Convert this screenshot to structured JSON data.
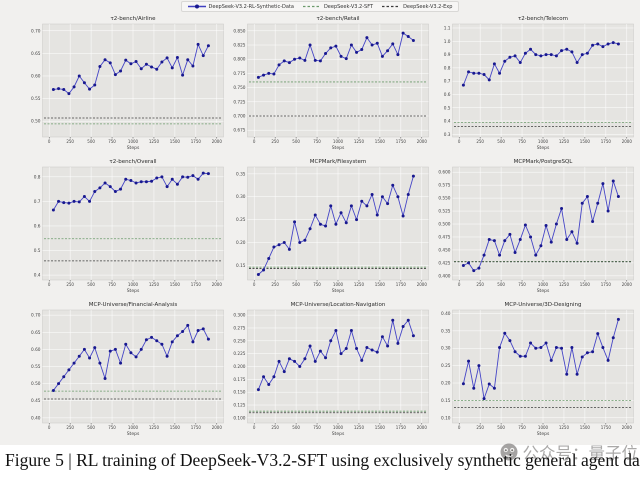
{
  "figure": {
    "caption": "Figure 5 | RL training of DeepSeek-V3.2-SFT using exclusively synthetic general agent data.",
    "watermark_text": "公众号：量子位",
    "xlabel": "Steps",
    "legend": [
      {
        "id": "rl-synthetic-data",
        "label": "DeepSeek-V3.2-RL-Synthetic-Data",
        "style": "line-dot",
        "color": "#4040c0"
      },
      {
        "id": "v32-sft",
        "label": "DeepSeek-V3.2-SFT",
        "style": "dashed",
        "color": "#6b9a6b"
      },
      {
        "id": "v32-exp",
        "label": "DeepSeek-V3.2-Exp",
        "style": "dashed",
        "color": "#3c3c3c"
      }
    ],
    "colors": {
      "series_line": "#4545c6",
      "series_marker": "#18188f",
      "sft_dashed": "#6b9a6b",
      "exp_dashed": "#3c3c3c",
      "axes_bg": "#e5e4e1",
      "fig_bg": "#f1f0ee",
      "grid_line": "#ffffff",
      "spine": "#c9c8c6",
      "tick_text": "#444444",
      "title_text": "#2a2a2a"
    }
  },
  "chart_data": [
    {
      "type": "line",
      "id": "tau2-bench-airline",
      "title": "τ2-bench/Airline",
      "xlabel": "Steps",
      "xticks": [
        0,
        250,
        500,
        750,
        1000,
        1250,
        1500,
        1750,
        2000
      ],
      "xlim": [
        -80,
        2080
      ],
      "x_start": 50,
      "x_end": 1900,
      "ylim": [
        0.465,
        0.715
      ],
      "yticks": [
        "0.50",
        "0.55",
        "0.60",
        "0.65",
        "0.70"
      ],
      "values": [
        0.57,
        0.572,
        0.57,
        0.561,
        0.576,
        0.6,
        0.585,
        0.571,
        0.58,
        0.621,
        0.636,
        0.629,
        0.603,
        0.611,
        0.635,
        0.627,
        0.632,
        0.616,
        0.626,
        0.62,
        0.615,
        0.631,
        0.64,
        0.618,
        0.641,
        0.602,
        0.636,
        0.622,
        0.67,
        0.645,
        0.667
      ],
      "sft_baseline": 0.494,
      "exp_baseline": 0.507
    },
    {
      "type": "line",
      "id": "tau2-bench-retail",
      "title": "τ2-bench/Retail",
      "xlabel": "Steps",
      "xticks": [
        0,
        250,
        500,
        750,
        1000,
        1250,
        1500,
        1750,
        2000
      ],
      "xlim": [
        -80,
        2080
      ],
      "x_start": 50,
      "x_end": 1900,
      "ylim": [
        0.663,
        0.862
      ],
      "yticks": [
        "0.675",
        "0.700",
        "0.725",
        "0.750",
        "0.775",
        "0.800",
        "0.825",
        "0.850"
      ],
      "values": [
        0.768,
        0.772,
        0.775,
        0.774,
        0.79,
        0.797,
        0.794,
        0.8,
        0.802,
        0.798,
        0.825,
        0.798,
        0.797,
        0.81,
        0.82,
        0.823,
        0.805,
        0.801,
        0.825,
        0.812,
        0.817,
        0.838,
        0.825,
        0.828,
        0.805,
        0.815,
        0.827,
        0.808,
        0.846,
        0.84,
        0.833
      ],
      "sft_baseline": 0.76,
      "exp_baseline": 0.7
    },
    {
      "type": "line",
      "id": "tau2-bench-telecom",
      "title": "τ2-bench/Telecom",
      "xlabel": "Steps",
      "xticks": [
        0,
        250,
        500,
        750,
        1000,
        1250,
        1500,
        1750,
        2000
      ],
      "xlim": [
        -80,
        2080
      ],
      "x_start": 50,
      "x_end": 1900,
      "ylim": [
        0.28,
        1.13
      ],
      "yticks": [
        "0.3",
        "0.4",
        "0.5",
        "0.6",
        "0.7",
        "0.8",
        "0.9",
        "1.0",
        "1.1"
      ],
      "values": [
        0.67,
        0.77,
        0.76,
        0.76,
        0.75,
        0.71,
        0.83,
        0.76,
        0.85,
        0.88,
        0.89,
        0.84,
        0.91,
        0.94,
        0.9,
        0.89,
        0.9,
        0.9,
        0.89,
        0.93,
        0.94,
        0.92,
        0.84,
        0.9,
        0.91,
        0.97,
        0.98,
        0.96,
        0.98,
        0.99,
        0.98
      ],
      "sft_baseline": 0.39,
      "exp_baseline": 0.36
    },
    {
      "type": "line",
      "id": "tau2-bench-overall",
      "title": "τ2-bench/Overall",
      "xlabel": "Steps",
      "xticks": [
        0,
        250,
        500,
        750,
        1000,
        1250,
        1500,
        1750,
        2000
      ],
      "xlim": [
        -80,
        2080
      ],
      "x_start": 50,
      "x_end": 1900,
      "ylim": [
        0.38,
        0.84
      ],
      "yticks": [
        "0.4",
        "0.5",
        "0.6",
        "0.7",
        "0.8"
      ],
      "values": [
        0.665,
        0.7,
        0.695,
        0.693,
        0.7,
        0.698,
        0.72,
        0.7,
        0.74,
        0.755,
        0.775,
        0.76,
        0.74,
        0.75,
        0.79,
        0.785,
        0.775,
        0.78,
        0.78,
        0.782,
        0.795,
        0.8,
        0.76,
        0.79,
        0.77,
        0.8,
        0.798,
        0.805,
        0.79,
        0.815,
        0.813
      ],
      "sft_baseline": 0.548,
      "exp_baseline": 0.458
    },
    {
      "type": "line",
      "id": "mcpmark-filesystem",
      "title": "MCPMark/Filesystem",
      "xlabel": "Steps",
      "xticks": [
        0,
        250,
        500,
        750,
        1000,
        1250,
        1500,
        1750,
        2000
      ],
      "xlim": [
        -80,
        2080
      ],
      "x_start": 50,
      "x_end": 1900,
      "ylim": [
        0.118,
        0.365
      ],
      "yticks": [
        "0.15",
        "0.20",
        "0.25",
        "0.30",
        "0.35"
      ],
      "values": [
        0.13,
        0.14,
        0.165,
        0.19,
        0.195,
        0.2,
        0.185,
        0.245,
        0.2,
        0.205,
        0.23,
        0.26,
        0.24,
        0.236,
        0.28,
        0.24,
        0.265,
        0.243,
        0.28,
        0.25,
        0.29,
        0.28,
        0.305,
        0.26,
        0.3,
        0.285,
        0.325,
        0.3,
        0.258,
        0.305,
        0.345
      ],
      "sft_baseline": 0.146,
      "exp_baseline": 0.143
    },
    {
      "type": "line",
      "id": "mcpmark-postgresql",
      "title": "MCPMark/PostgreSQL",
      "xlabel": "Steps",
      "xticks": [
        0,
        250,
        500,
        750,
        1000,
        1250,
        1500,
        1750,
        2000
      ],
      "xlim": [
        -80,
        2080
      ],
      "x_start": 50,
      "x_end": 1900,
      "ylim": [
        0.392,
        0.61
      ],
      "yticks": [
        "0.400",
        "0.425",
        "0.450",
        "0.475",
        "0.500",
        "0.525",
        "0.550",
        "0.575",
        "0.600"
      ],
      "values": [
        0.42,
        0.425,
        0.41,
        0.415,
        0.44,
        0.47,
        0.468,
        0.44,
        0.468,
        0.48,
        0.445,
        0.47,
        0.498,
        0.475,
        0.44,
        0.458,
        0.497,
        0.465,
        0.5,
        0.53,
        0.47,
        0.485,
        0.463,
        0.54,
        0.553,
        0.505,
        0.54,
        0.578,
        0.525,
        0.583,
        0.553
      ],
      "sft_baseline": 0.428,
      "exp_baseline": 0.427
    },
    {
      "type": "line",
      "id": "mcp-universe-financial-analysis",
      "title": "MCP-Universe/Financial-Analysis",
      "xlabel": "Steps",
      "xticks": [
        0,
        250,
        500,
        750,
        1000,
        1250,
        1500,
        1750,
        2000
      ],
      "xlim": [
        -80,
        2080
      ],
      "x_start": 50,
      "x_end": 1900,
      "ylim": [
        0.385,
        0.715
      ],
      "yticks": [
        "0.40",
        "0.45",
        "0.50",
        "0.55",
        "0.60",
        "0.65",
        "0.70"
      ],
      "values": [
        0.48,
        0.5,
        0.52,
        0.54,
        0.56,
        0.58,
        0.6,
        0.575,
        0.605,
        0.56,
        0.515,
        0.595,
        0.6,
        0.56,
        0.615,
        0.59,
        0.578,
        0.6,
        0.628,
        0.635,
        0.625,
        0.615,
        0.58,
        0.622,
        0.64,
        0.652,
        0.67,
        0.622,
        0.655,
        0.66,
        0.63
      ],
      "sft_baseline": 0.478,
      "exp_baseline": 0.455
    },
    {
      "type": "line",
      "id": "mcp-universe-location-navigation",
      "title": "MCP-Universe/Location-Navigation",
      "xlabel": "Steps",
      "xticks": [
        0,
        250,
        500,
        750,
        1000,
        1250,
        1500,
        1750,
        2000
      ],
      "xlim": [
        -80,
        2080
      ],
      "x_start": 50,
      "x_end": 1900,
      "ylim": [
        0.09,
        0.31
      ],
      "yticks": [
        "0.100",
        "0.125",
        "0.150",
        "0.175",
        "0.200",
        "0.225",
        "0.250",
        "0.275",
        "0.300"
      ],
      "values": [
        0.155,
        0.18,
        0.165,
        0.18,
        0.21,
        0.19,
        0.215,
        0.21,
        0.2,
        0.215,
        0.24,
        0.21,
        0.23,
        0.217,
        0.25,
        0.27,
        0.225,
        0.235,
        0.27,
        0.235,
        0.212,
        0.237,
        0.232,
        0.228,
        0.258,
        0.24,
        0.29,
        0.245,
        0.278,
        0.29,
        0.26
      ],
      "sft_baseline": 0.113,
      "exp_baseline": 0.11
    },
    {
      "type": "line",
      "id": "mcp-universe-3d-designing",
      "title": "MCP-Universe/3D-Designing",
      "xlabel": "Steps",
      "xticks": [
        0,
        250,
        500,
        750,
        1000,
        1250,
        1500,
        1750,
        2000
      ],
      "xlim": [
        -80,
        2080
      ],
      "x_start": 50,
      "x_end": 1900,
      "ylim": [
        0.085,
        0.41
      ],
      "yticks": [
        "0.10",
        "0.15",
        "0.20",
        "0.25",
        "0.30",
        "0.35",
        "0.40"
      ],
      "values": [
        0.198,
        0.263,
        0.185,
        0.25,
        0.155,
        0.197,
        0.185,
        0.302,
        0.343,
        0.322,
        0.29,
        0.277,
        0.277,
        0.315,
        0.3,
        0.302,
        0.315,
        0.265,
        0.302,
        0.3,
        0.225,
        0.302,
        0.225,
        0.275,
        0.287,
        0.29,
        0.342,
        0.302,
        0.265,
        0.33,
        0.383
      ],
      "sft_baseline": 0.15,
      "exp_baseline": 0.13
    }
  ]
}
